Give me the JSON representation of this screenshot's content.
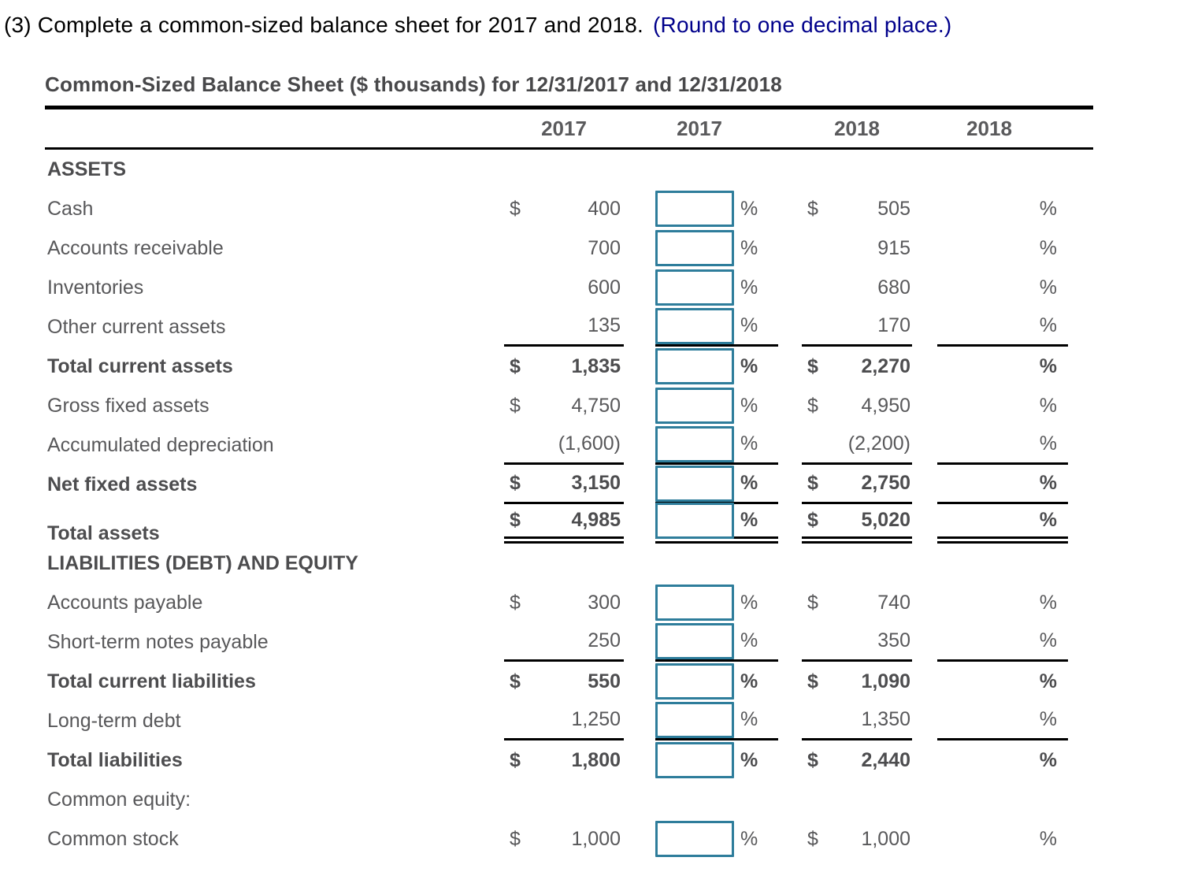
{
  "instruction": {
    "text": "(3) Complete a common-sized balance sheet for 2017 and 2018.",
    "note": "(Round to one decimal place.)"
  },
  "colors": {
    "instruction_note": "#00008b",
    "input_border": "#2e7d9b",
    "text_gray": "#58585a",
    "rule_black": "#000000"
  },
  "table": {
    "title": "Common-Sized Balance Sheet ($ thousands) for 12/31/2017 and 12/31/2018",
    "column_headers": [
      "2017",
      "2017",
      "2018",
      "2018"
    ],
    "dollar_symbol": "$",
    "percent_symbol": "%",
    "rows": [
      {
        "label": "ASSETS",
        "type": "section",
        "rule": "none",
        "input": false
      },
      {
        "label": "Cash",
        "type": "item",
        "dollar1": "$",
        "val1": "400",
        "dollar2": "$",
        "val2": "505",
        "rule": "none",
        "input": true
      },
      {
        "label": "Accounts receivable",
        "type": "item",
        "dollar1": "",
        "val1": "700",
        "dollar2": "",
        "val2": "915",
        "rule": "none",
        "input": true
      },
      {
        "label": "Inventories",
        "type": "item",
        "dollar1": "",
        "val1": "600",
        "dollar2": "",
        "val2": "680",
        "rule": "none",
        "input": true
      },
      {
        "label": "Other current assets",
        "type": "item",
        "dollar1": "",
        "val1": "135",
        "dollar2": "",
        "val2": "170",
        "rule": "single",
        "input": true
      },
      {
        "label": "Total current assets",
        "type": "total",
        "dollar1": "$",
        "val1": "1,835",
        "dollar2": "$",
        "val2": "2,270",
        "rule": "none",
        "input": true
      },
      {
        "label": "Gross fixed assets",
        "type": "item",
        "dollar1": "$",
        "val1": "4,750",
        "dollar2": "$",
        "val2": "4,950",
        "rule": "none",
        "input": true
      },
      {
        "label": "Accumulated depreciation",
        "type": "item",
        "dollar1": "",
        "val1": "(1,600)",
        "dollar2": "",
        "val2": "(2,200)",
        "rule": "single",
        "input": true
      },
      {
        "label": "Net fixed assets",
        "type": "total",
        "dollar1": "$",
        "val1": "3,150",
        "dollar2": "$",
        "val2": "2,750",
        "rule": "single",
        "input": true
      },
      {
        "label": "Total assets",
        "type": "total",
        "dollar1": "$",
        "val1": "4,985",
        "dollar2": "$",
        "val2": "5,020",
        "rule": "double",
        "input": true
      },
      {
        "label": "LIABILITIES (DEBT) AND EQUITY",
        "type": "section",
        "rule": "none",
        "input": false
      },
      {
        "label": "Accounts payable",
        "type": "item",
        "dollar1": "$",
        "val1": "300",
        "dollar2": "$",
        "val2": "740",
        "rule": "none",
        "input": true
      },
      {
        "label": "Short-term notes payable",
        "type": "item",
        "dollar1": "",
        "val1": "250",
        "dollar2": "",
        "val2": "350",
        "rule": "single",
        "input": true
      },
      {
        "label": "Total current liabilities",
        "type": "total",
        "dollar1": "$",
        "val1": "550",
        "dollar2": "$",
        "val2": "1,090",
        "rule": "none",
        "input": true
      },
      {
        "label": "Long-term debt",
        "type": "item",
        "dollar1": "",
        "val1": "1,250",
        "dollar2": "",
        "val2": "1,350",
        "rule": "single",
        "input": true
      },
      {
        "label": "Total liabilities",
        "type": "total",
        "dollar1": "$",
        "val1": "1,800",
        "dollar2": "$",
        "val2": "2,440",
        "rule": "none",
        "input": true
      },
      {
        "label": "Common equity:",
        "type": "plain",
        "rule": "none",
        "input": false
      },
      {
        "label": "Common stock",
        "type": "item",
        "dollar1": "$",
        "val1": "1,000",
        "dollar2": "$",
        "val2": "1,000",
        "rule": "none",
        "input": true
      }
    ]
  }
}
